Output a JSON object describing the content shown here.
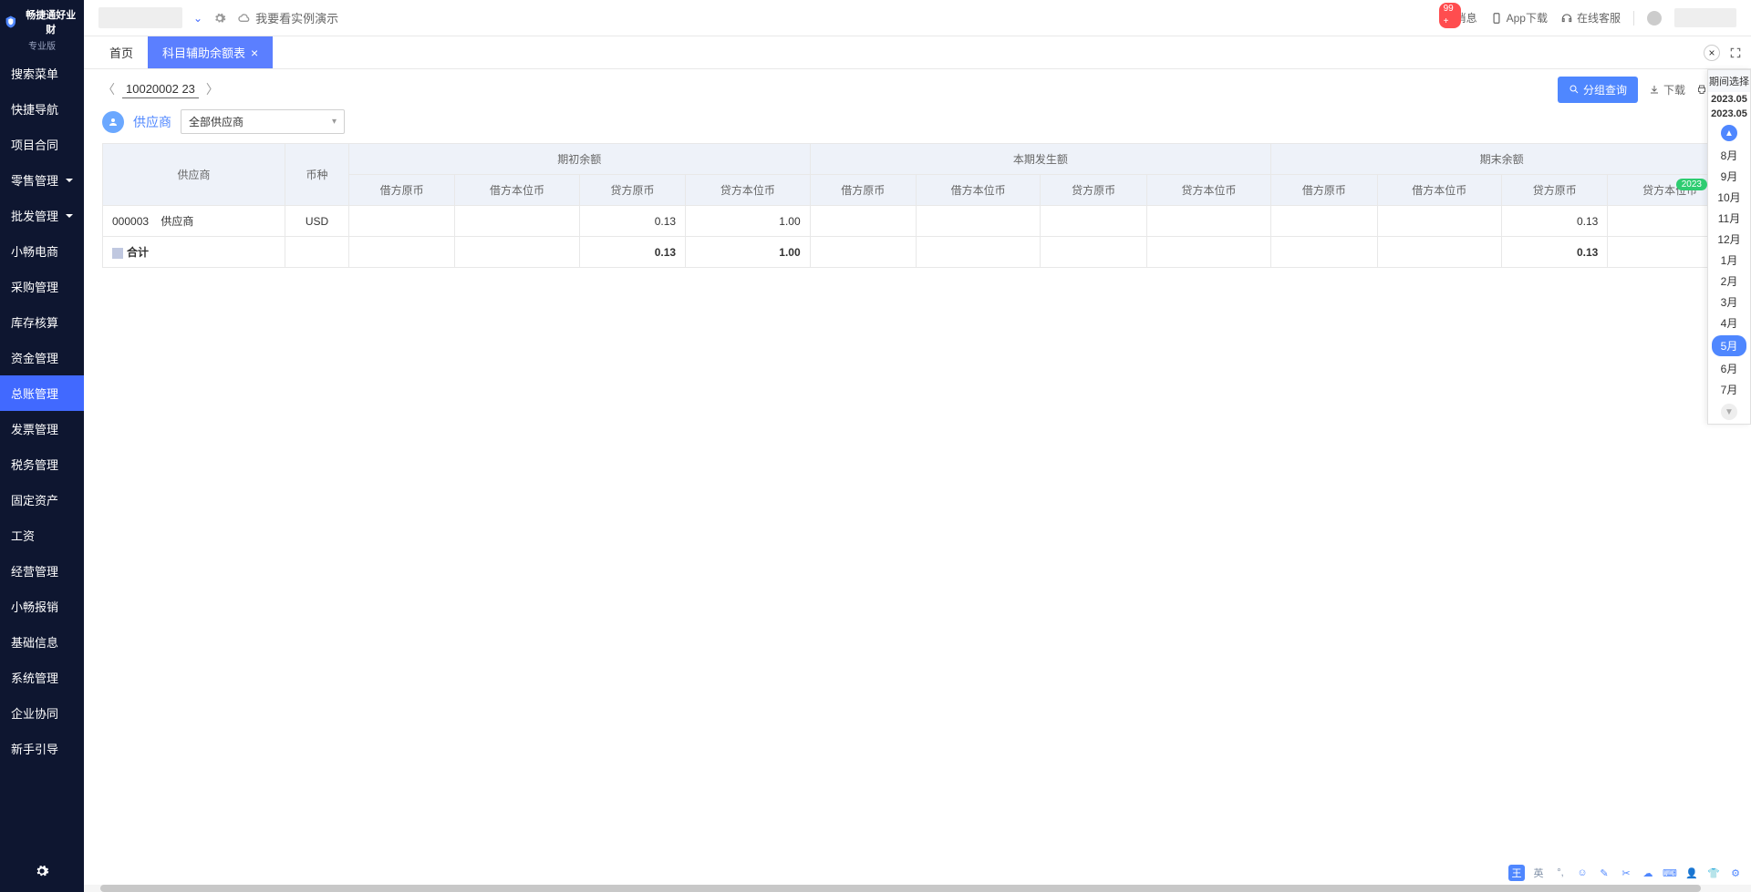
{
  "brand": {
    "name": "畅捷通好业财",
    "edition": "专业版"
  },
  "sidebar": {
    "items": [
      {
        "label": "搜索菜单",
        "caret": false
      },
      {
        "label": "快捷导航",
        "caret": false
      },
      {
        "label": "项目合同",
        "caret": false
      },
      {
        "label": "零售管理",
        "caret": true
      },
      {
        "label": "批发管理",
        "caret": true
      },
      {
        "label": "小畅电商",
        "caret": false
      },
      {
        "label": "采购管理",
        "caret": false
      },
      {
        "label": "库存核算",
        "caret": false
      },
      {
        "label": "资金管理",
        "caret": false
      },
      {
        "label": "总账管理",
        "caret": false,
        "active": true
      },
      {
        "label": "发票管理",
        "caret": false
      },
      {
        "label": "税务管理",
        "caret": false
      },
      {
        "label": "固定资产",
        "caret": false
      },
      {
        "label": "工资",
        "caret": false
      },
      {
        "label": "经营管理",
        "caret": false
      },
      {
        "label": "小畅报销",
        "caret": false
      },
      {
        "label": "基础信息",
        "caret": false
      },
      {
        "label": "系统管理",
        "caret": false
      },
      {
        "label": "企业协同",
        "caret": false
      },
      {
        "label": "新手引导",
        "caret": false
      }
    ]
  },
  "topbar": {
    "demo": "我要看实例演示",
    "actions": {
      "msg": "消息",
      "msg_badge": "99 +",
      "download": "App下载",
      "service": "在线客服"
    }
  },
  "tabs": {
    "home": "首页",
    "active": "科目辅助余额表"
  },
  "toolbar": {
    "account": "10020002  23",
    "query": "分组查询",
    "download": "下载",
    "print": "打印"
  },
  "filter": {
    "label": "供应商",
    "select": "全部供应商"
  },
  "table": {
    "headers": {
      "supplier": "供应商",
      "currency": "币种",
      "opening": "期初余额",
      "occur": "本期发生额",
      "closing": "期末余额",
      "debit_orig": "借方原币",
      "debit_base": "借方本位币",
      "credit_orig": "贷方原币",
      "credit_base": "贷方本位币"
    },
    "row": {
      "code": "000003",
      "name": "供应商",
      "currency": "USD",
      "open_credit_orig": "0.13",
      "open_credit_base": "1.00",
      "close_credit_orig": "0.13"
    },
    "total": {
      "label": "合计",
      "open_credit_orig": "0.13",
      "open_credit_base": "1.00",
      "close_credit_orig": "0.13"
    }
  },
  "period": {
    "title": "期间选择",
    "from": "2023.05",
    "to": "2023.05",
    "year_badge": "2023",
    "months": [
      "8月",
      "9月",
      "10月",
      "11月",
      "12月",
      "1月",
      "2月",
      "3月",
      "4月",
      "5月",
      "6月",
      "7月"
    ],
    "active_month": "5月"
  },
  "ime": {
    "main": "王",
    "lang": "英"
  },
  "colors": {
    "sidebar_bg": "#0e1630",
    "primary": "#4f87ff",
    "tab_active": "#5b7fff",
    "nav_active": "#4169ff",
    "table_header_bg": "#eef2f9",
    "badge_red": "#ff4d4f",
    "year_badge": "#2ecc71"
  }
}
